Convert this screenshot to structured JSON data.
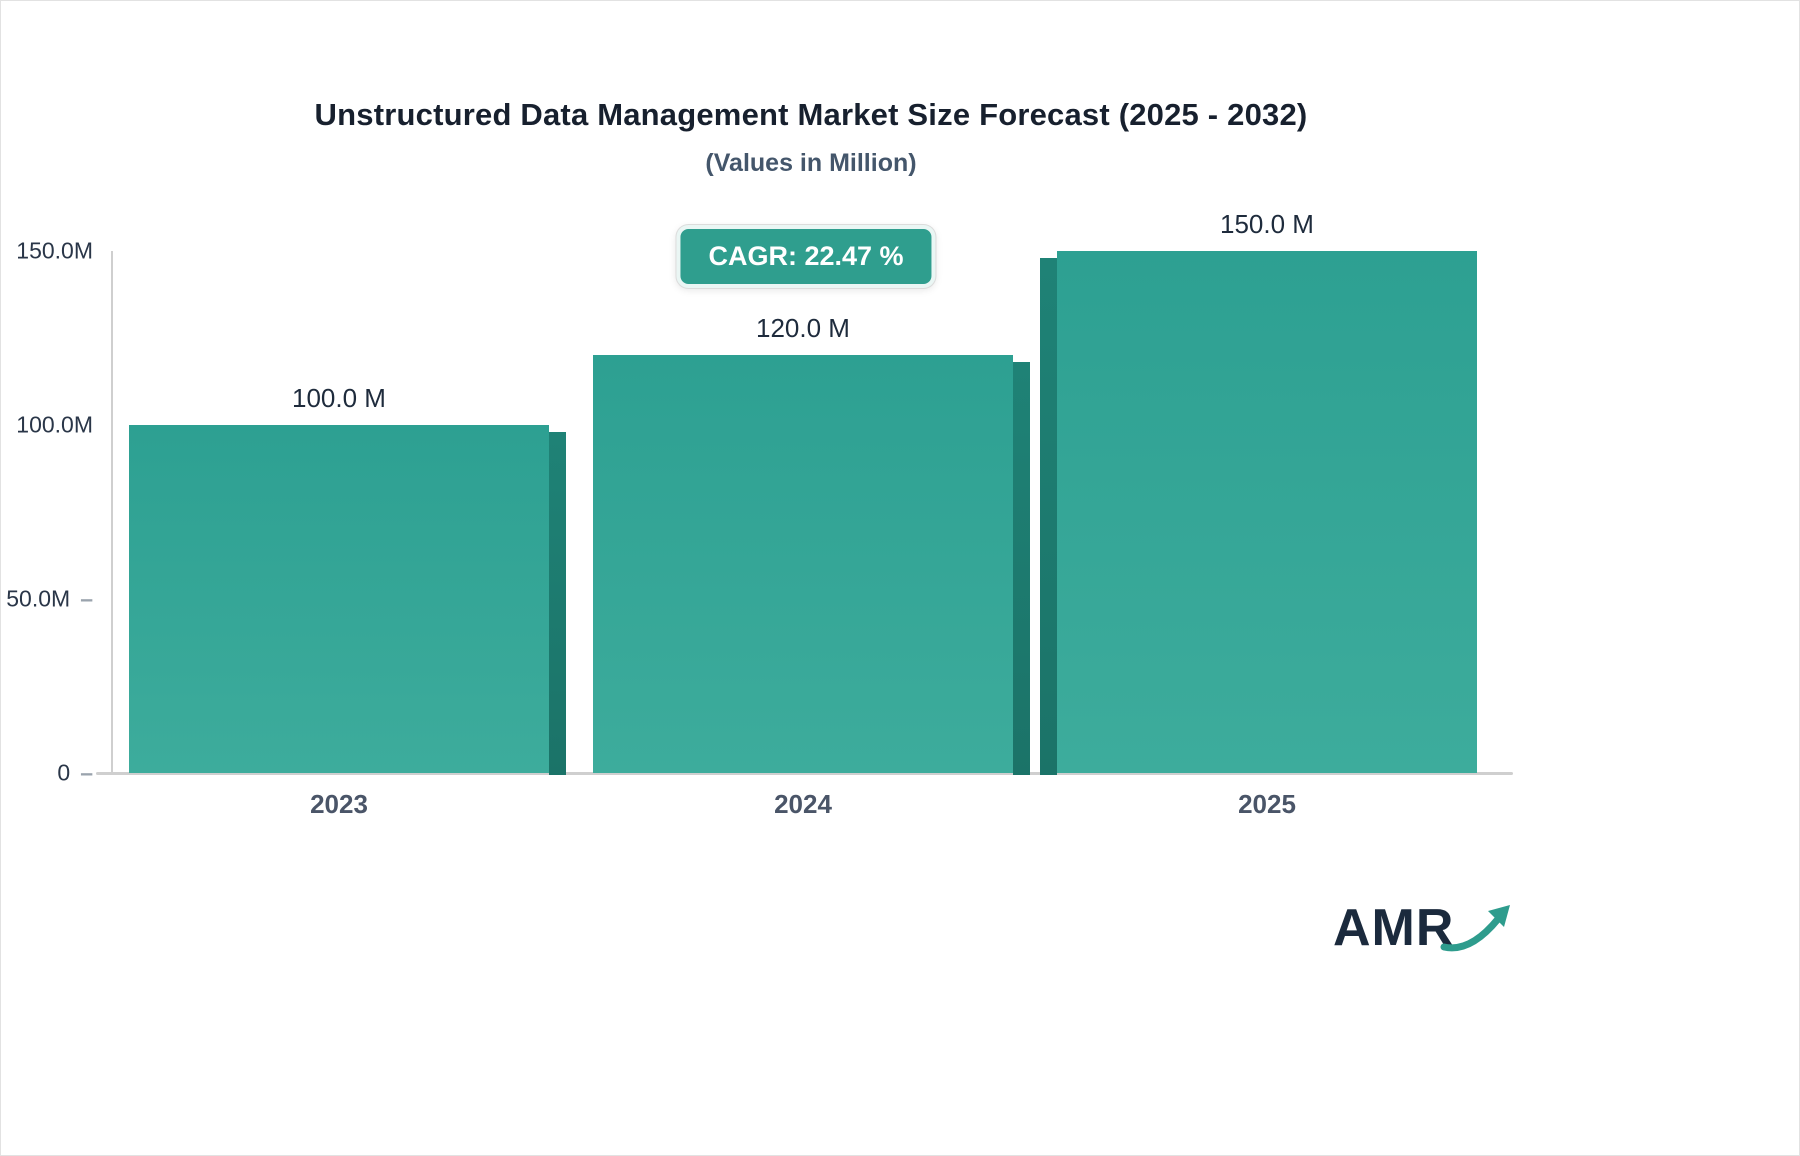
{
  "header": {
    "title": "Unstructured Data Management Market Size Forecast (2025 - 2032)",
    "subtitle": "(Values in Million)"
  },
  "badge": {
    "cagr_label": "CAGR: 22.47 %"
  },
  "logo": {
    "text": "AMR"
  },
  "colors": {
    "bar_fill": "#2da092",
    "bar_side": "#1f8276",
    "badge_bg": "#2f9e8e",
    "title_text": "#17202e",
    "subtitle_text": "#44566b",
    "axis_line": "#cfcfcf",
    "arrow": "#2e9c8d"
  },
  "chart_data": {
    "type": "bar",
    "title": "Unstructured Data Management Market Size Forecast (2025 - 2032)",
    "subtitle": "(Values in Million)",
    "categories": [
      "2023",
      "2024",
      "2025"
    ],
    "values": [
      100.0,
      120.0,
      150.0
    ],
    "value_labels": [
      "100.0 M",
      "120.0 M",
      "150.0 M"
    ],
    "unit": "Million",
    "xlabel": "",
    "ylabel": "",
    "ylim": [
      0,
      150
    ],
    "grid": false,
    "legend": false,
    "yticks": [
      {
        "value": 0,
        "label": "0",
        "dash": true
      },
      {
        "value": 50,
        "label": "50.0M",
        "dash": true
      },
      {
        "value": 100,
        "label": "100.0M",
        "dash": false
      },
      {
        "value": 150,
        "label": "150.0M",
        "dash": false
      }
    ]
  }
}
